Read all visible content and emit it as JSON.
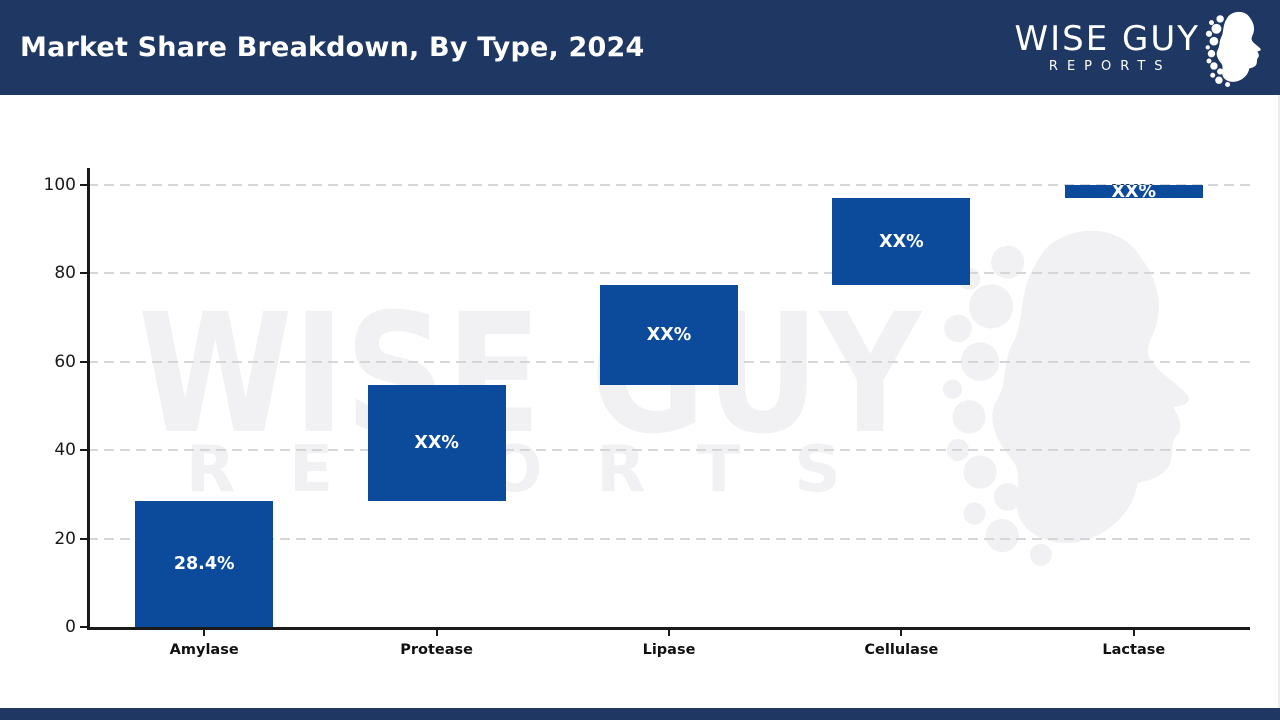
{
  "header": {
    "title": "Market Share Breakdown, By Type, 2024",
    "bg_color": "#1f3863",
    "logo": {
      "line1": "WISE GUY",
      "line2": "REPORTS"
    }
  },
  "watermark": {
    "line1": "WISE GUY",
    "line2": "REPORTS"
  },
  "chart_data": {
    "type": "bar",
    "subtype": "waterfall",
    "title": "Market Share Breakdown, By Type, 2024",
    "categories": [
      "Amylase",
      "Protease",
      "Lipase",
      "Cellulase",
      "Lactase"
    ],
    "segments": [
      {
        "category": "Amylase",
        "start": 0,
        "end": 28.4,
        "label": "28.4%"
      },
      {
        "category": "Protease",
        "start": 28.4,
        "end": 54.7,
        "label": "XX%"
      },
      {
        "category": "Lipase",
        "start": 54.7,
        "end": 77.4,
        "label": "XX%"
      },
      {
        "category": "Cellulase",
        "start": 77.4,
        "end": 97.0,
        "label": "XX%"
      },
      {
        "category": "Lactase",
        "start": 97.0,
        "end": 100.0,
        "label": "XX%"
      }
    ],
    "ylim": [
      0,
      100
    ],
    "yticks": [
      0,
      20,
      40,
      60,
      80,
      100
    ],
    "grid": "horizontal-dashed",
    "bar_color": "#0c4a9c",
    "legend": "none"
  }
}
